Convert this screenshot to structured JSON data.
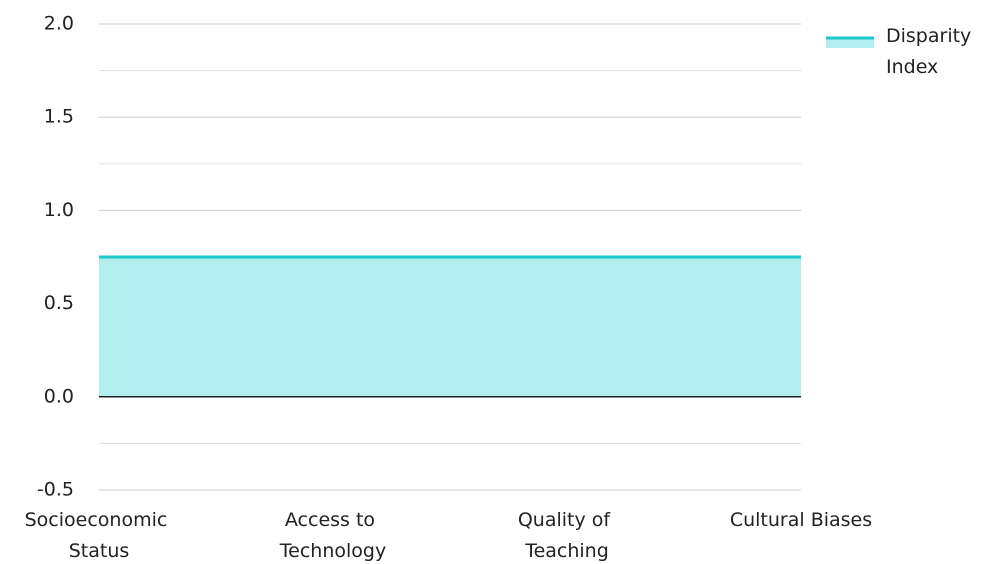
{
  "chart_data": {
    "type": "area",
    "categories": [
      "Socioeconomic Status",
      "Access to Technology",
      "Quality of Teaching",
      "Cultural Biases"
    ],
    "series": [
      {
        "name": "Disparity Index",
        "color": "#1ec8c8",
        "fill": "#b2eeee",
        "values": [
          0.75,
          0.75,
          0.75,
          0.75
        ]
      }
    ],
    "ylim": [
      -0.5,
      2.0
    ],
    "yticks": [
      {
        "value": -0.5,
        "label": "-0.5"
      },
      {
        "value": 0,
        "label": "0.0"
      },
      {
        "value": 0.5,
        "label": "0.5"
      },
      {
        "value": 1,
        "label": "1.0"
      },
      {
        "value": 1.5,
        "label": "1.5"
      },
      {
        "value": 2,
        "label": "2.0"
      }
    ],
    "y_minor_ticks": [
      -0.25,
      0.25,
      0.75,
      1.25,
      1.75
    ],
    "grid": true,
    "legend": "top-right"
  }
}
